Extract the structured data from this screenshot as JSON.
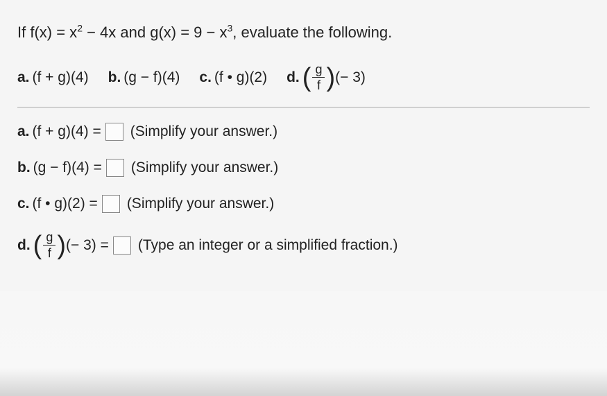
{
  "question": {
    "prefix": "If f(x) = x",
    "exp1": "2",
    "mid1": " − 4x and g(x) = 9 − x",
    "exp2": "3",
    "suffix": ", evaluate the following."
  },
  "parts": {
    "a": {
      "label": "a.",
      "expr": "(f + g)(4)"
    },
    "b": {
      "label": "b.",
      "expr": "(g − f)(4)"
    },
    "c": {
      "label": "c.",
      "expr": "(f • g)(2)"
    },
    "d": {
      "label": "d.",
      "frac_num": "g",
      "frac_den": "f",
      "after": "(− 3)"
    }
  },
  "answers": {
    "a": {
      "label": "a.",
      "lhs": "(f + g)(4) =",
      "hint": "(Simplify your answer.)"
    },
    "b": {
      "label": "b.",
      "lhs": "(g − f)(4) =",
      "hint": "(Simplify your answer.)"
    },
    "c": {
      "label": "c.",
      "lhs": "(f • g)(2) =",
      "hint": "(Simplify your answer.)"
    },
    "d": {
      "label": "d.",
      "frac_num": "g",
      "frac_den": "f",
      "after": "(− 3) =",
      "hint": "(Type an integer or a simplified fraction.)"
    }
  },
  "colors": {
    "text": "#222222",
    "border": "#aaaaaa",
    "box_border": "#888888",
    "background": "#f5f5f5"
  }
}
